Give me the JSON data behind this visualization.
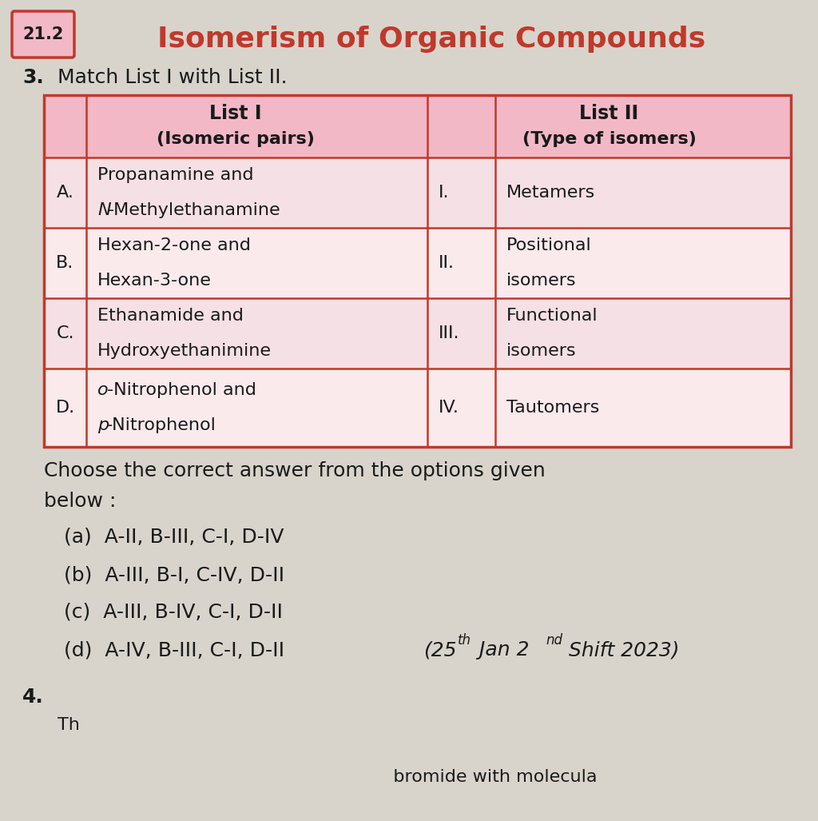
{
  "title": "Isomerism of Organic Compounds",
  "question_number": "3.",
  "question_text": "Match List I with List II.",
  "box_label": "21.2",
  "list1_header1": "List I",
  "list1_header2": "(Isomeric pairs)",
  "list2_header1": "List II",
  "list2_header2": "(Type of isomers)",
  "rows": [
    {
      "letter": "A.",
      "list1_line1": "Propanamine and",
      "list1_line2": "N-Methylethanamine",
      "list1_line1_italic_prefix": false,
      "list1_line2_italic_N": true,
      "numeral": "I.",
      "list2_line1": "Metamers",
      "list2_line2": ""
    },
    {
      "letter": "B.",
      "list1_line1": "Hexan-2-one and",
      "list1_line2": "Hexan-3-one",
      "list1_line1_italic_prefix": false,
      "list1_line2_italic_N": false,
      "numeral": "II.",
      "list2_line1": "Positional",
      "list2_line2": "isomers"
    },
    {
      "letter": "C.",
      "list1_line1": "Ethanamide and",
      "list1_line2": "Hydroxyethanimine",
      "list1_line1_italic_prefix": false,
      "list1_line2_italic_N": false,
      "numeral": "III.",
      "list2_line1": "Functional",
      "list2_line2": "isomers"
    },
    {
      "letter": "D.",
      "list1_line1": "o-Nitrophenol and",
      "list1_line1_italic_o": true,
      "list1_line2": "p-Nitrophenol",
      "list1_line2_italic_p": true,
      "list1_line1_italic_prefix": true,
      "list1_line2_italic_N": false,
      "numeral": "IV.",
      "list2_line1": "Tautomers",
      "list2_line2": ""
    }
  ],
  "options_intro_line1": "Choose the correct answer from the options given",
  "options_intro_line2": "below :",
  "options": [
    "(a)  A-II, B-III, C-I, D-IV",
    "(b)  A-III, B-I, C-IV, D-II",
    "(c)  A-III, B-IV, C-I, D-II",
    "(d)  A-IV, B-III, C-I, D-II"
  ],
  "bg_color": "#D8D4CC",
  "header_bg": "#F2B8C6",
  "row_bg_odd": "#F5E0E5",
  "row_bg_even": "#FAEAEC",
  "table_border": "#C0392B",
  "title_color": "#C0392B",
  "text_color": "#1A1A1A",
  "box_bg": "#F2B8C6",
  "box_border": "#C0392B",
  "box_text_color": "#1A1A1A"
}
